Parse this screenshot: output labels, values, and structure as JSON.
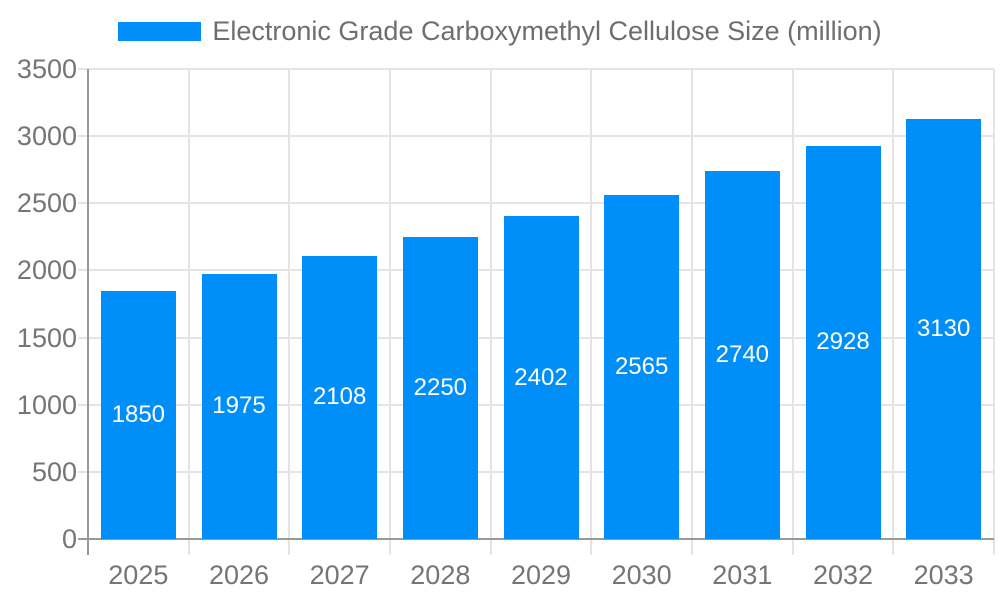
{
  "legend": {
    "label": "Electronic Grade Carboxymethyl Cellulose Size (million)"
  },
  "chart_data": {
    "type": "bar",
    "title": "Electronic Grade Carboxymethyl Cellulose Size (million)",
    "series_name": "Electronic Grade Carboxymethyl Cellulose Size (million)",
    "categories": [
      "2025",
      "2026",
      "2027",
      "2028",
      "2029",
      "2030",
      "2031",
      "2032",
      "2033"
    ],
    "values": [
      1850,
      1975,
      2108,
      2250,
      2402,
      2565,
      2740,
      2928,
      3130
    ],
    "xlabel": "",
    "ylabel": "",
    "ylim": [
      0,
      3500
    ],
    "ytick_values": [
      0,
      500,
      1000,
      1500,
      2000,
      2500,
      3000,
      3500
    ],
    "ytick_labels": [
      "0",
      "500",
      "1000",
      "1500",
      "2000",
      "2500",
      "3000",
      "3500"
    ],
    "grid": true,
    "legend_position": "top-center",
    "value_labels_position": "inside-center",
    "colors": {
      "bar": "#008ff8",
      "grid": "#e4e4e4",
      "axis": "#999999",
      "tick_text": "#757575",
      "value_label_text": "#ffffff",
      "legend_text": "#6e6e6e",
      "background": "#ffffff"
    }
  }
}
